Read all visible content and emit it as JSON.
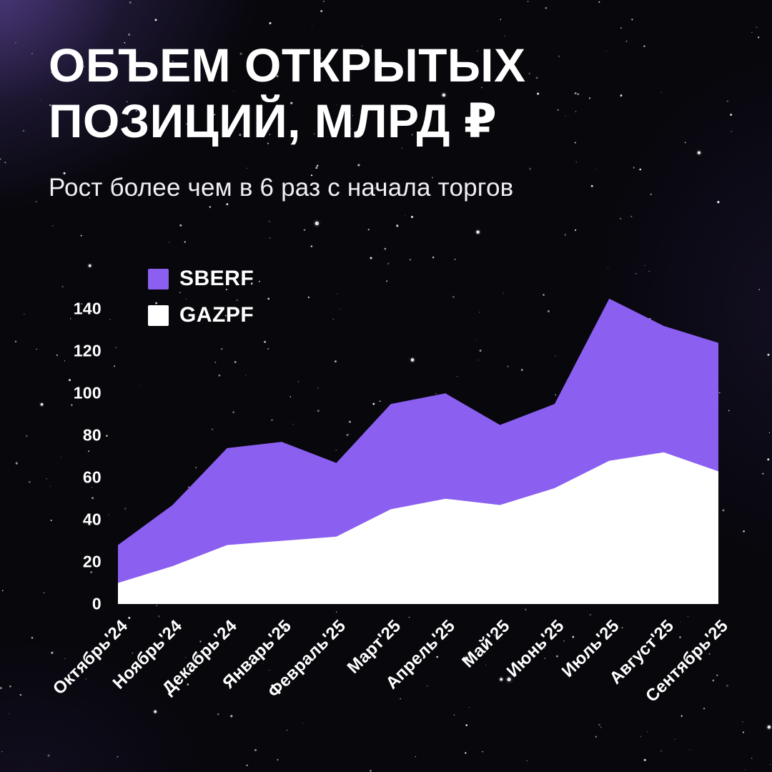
{
  "poster": {
    "title_line1": "ОБЪЕМ ОТКРЫТЫХ",
    "title_line2": "ПОЗИЦИЙ, МЛРД ₽",
    "subtitle": "Рост более чем в 6 раз с начала торгов"
  },
  "chart_data": {
    "type": "area",
    "stacked": true,
    "title": "ОБЪЕМ ОТКРЫТЫХ ПОЗИЦИЙ, МЛРД ₽",
    "subtitle": "Рост более чем в 6 раз с начала торгов",
    "categories": [
      "Октябрь'24",
      "Ноябрь'24",
      "Декабрь'24",
      "Январь'25",
      "Февраль'25",
      "Март'25",
      "Апрель'25",
      "Май'25",
      "Июнь'25",
      "Июль'25",
      "Август'25",
      "Сентябрь'25"
    ],
    "series": [
      {
        "name": "SBERF",
        "color": "#8B5FF0",
        "values": [
          18,
          29,
          46,
          47,
          35,
          50,
          50,
          38,
          40,
          77,
          60,
          61
        ]
      },
      {
        "name": "GAZPF",
        "color": "#FFFFFF",
        "values": [
          10,
          18,
          28,
          30,
          32,
          45,
          50,
          47,
          55,
          68,
          72,
          63
        ]
      }
    ],
    "stack_totals": [
      28,
      47,
      74,
      77,
      67,
      95,
      100,
      85,
      95,
      145,
      132,
      124
    ],
    "y_ticks": [
      0,
      20,
      40,
      60,
      80,
      100,
      120,
      140
    ],
    "ylim": [
      0,
      150
    ],
    "xlabel": "",
    "ylabel": "",
    "grid": false,
    "legend_position": "top-left",
    "background": "#07070C"
  }
}
